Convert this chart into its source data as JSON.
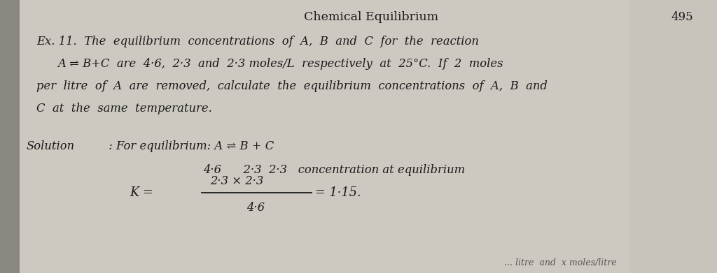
{
  "bg_left_color": "#b8b4ac",
  "bg_main_color": "#ccc8c0",
  "bg_right_color": "#d4d0c8",
  "title": "Chemical Equilibrium",
  "page_number": "495",
  "title_fontsize": 12.5,
  "page_num_fontsize": 12,
  "body_italic_color": "#1a1a1a",
  "line1": "Ex. 11.  The  equilibrium  concentrations  of  A,  B  and  C  for  the  reaction",
  "line2": "A ⇌ B+C  are  4·6,  2·3  and  2·3 moles/L  respectively  at  25°C.  If  2  moles",
  "line3": "per  litre  of  A  are  removed,  calculate  the  equilibrium  concentrations  of  A,  B  and",
  "line4": "C  at  the  same  temperature.",
  "sol_label": "Solution",
  "sol_rest": " : For equilibrium: A ⇌ B + C",
  "sol_num_line": "4·6      2·3  2·3   concentration at equilibrium",
  "frac_num": "2·3 × 2·3",
  "frac_den": "4·6",
  "k_left": "K =",
  "k_right": "= 1·15.",
  "bottom_hint": "litre  and  x moles/litre"
}
